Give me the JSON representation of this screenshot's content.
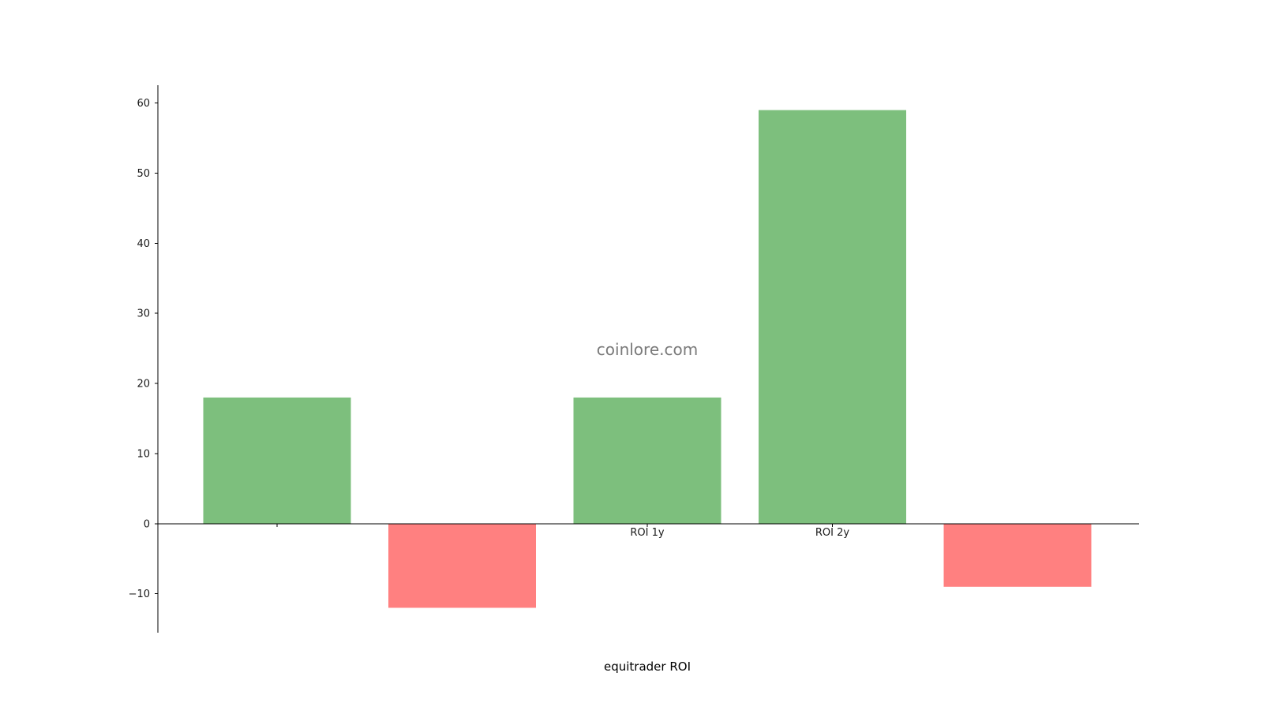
{
  "chart_data": {
    "type": "bar",
    "categories": [
      "",
      "",
      "ROI 1y",
      "ROI 2y",
      ""
    ],
    "values": [
      18,
      -12,
      18,
      59,
      -9
    ],
    "title": "",
    "xlabel": "equitrader ROI",
    "ylabel": "",
    "yticks": [
      -10,
      0,
      10,
      20,
      30,
      40,
      50,
      60
    ],
    "ylim": [
      -15.55,
      62.55
    ],
    "grid": false,
    "legend": null,
    "watermark": "coinlore.com",
    "colors": {
      "positive_bar": "#7dbf7d",
      "negative_bar": "#ff8080",
      "axis": "#000000",
      "tick_label": "#1a1a1a",
      "watermark": "#7a7a7a",
      "xlabel": "#000000"
    }
  }
}
